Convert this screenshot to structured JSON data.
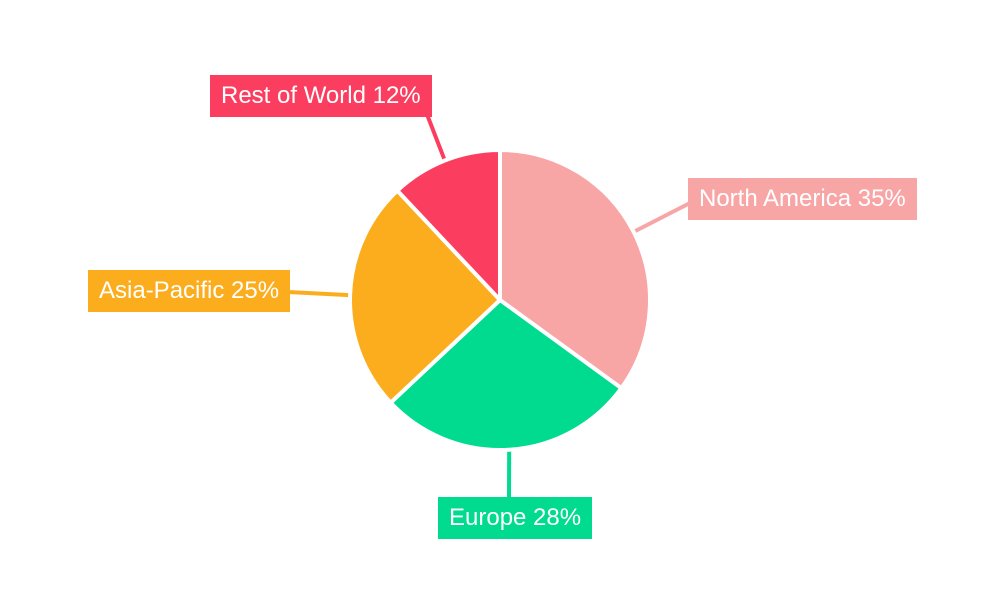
{
  "page": {
    "background": "#FFFFFF"
  },
  "chart_data": {
    "type": "pie",
    "title": "",
    "total": 100,
    "start_angle_deg": 0,
    "direction": "clockwise",
    "slice_border_color": "#FFFFFF",
    "label_text_color": "#FFFFFF",
    "legend": "none",
    "slices": [
      {
        "label": "North America",
        "value": 35,
        "display": "North America 35%",
        "color": "#F8A5A6"
      },
      {
        "label": "Europe",
        "value": 28,
        "display": "Europe 28%",
        "color": "#00DB90"
      },
      {
        "label": "Asia-Pacific",
        "value": 25,
        "display": "Asia-Pacific 25%",
        "color": "#FBAD1D"
      },
      {
        "label": "Rest of World",
        "value": 12,
        "display": "Rest of World 12%",
        "color": "#FB3E5F"
      }
    ]
  }
}
